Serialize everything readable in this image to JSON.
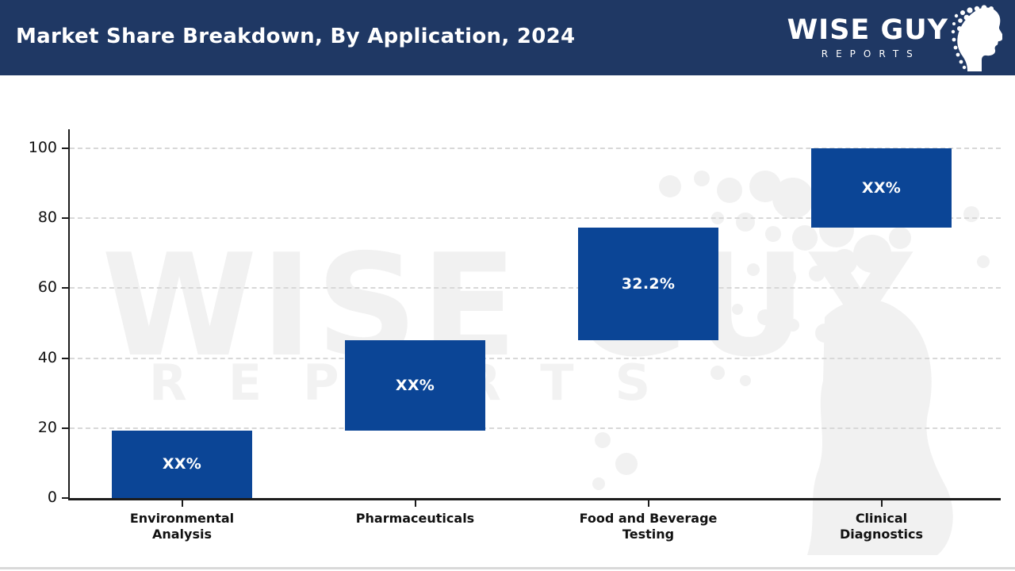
{
  "header": {
    "title": "Market Share Breakdown, By Application, 2024",
    "brand": {
      "name": "WISE GUY",
      "reports": "REPORTS"
    }
  },
  "watermark": {
    "line1": "WISE GUY",
    "line2": "REPORTS"
  },
  "chart_data": {
    "type": "bar",
    "variant": "waterfall",
    "title": "Market Share Breakdown, By Application, 2024",
    "xlabel": "",
    "ylabel": "",
    "ylim": [
      0,
      105.4
    ],
    "yticks": [
      0,
      20,
      40,
      60,
      80,
      100
    ],
    "grid": true,
    "legend": false,
    "bar_color": "#0b4596",
    "categories": [
      "Environmental Analysis",
      "Pharmaceuticals",
      "Food and Beverage Testing",
      "Clinical Diagnostics"
    ],
    "segments": [
      {
        "category": "Environmental Analysis",
        "lines": [
          "Environmental",
          "Analysis"
        ],
        "start": 0,
        "end": 19.3,
        "value": 19.3,
        "display_label": "XX%"
      },
      {
        "category": "Pharmaceuticals",
        "lines": [
          "Pharmaceuticals"
        ],
        "start": 19.3,
        "end": 45.0,
        "value": 25.7,
        "display_label": "XX%"
      },
      {
        "category": "Food and Beverage Testing",
        "lines": [
          "Food and Beverage",
          "Testing"
        ],
        "start": 45.0,
        "end": 77.2,
        "value": 32.2,
        "display_label": "32.2%"
      },
      {
        "category": "Clinical Diagnostics",
        "lines": [
          "Clinical",
          "Diagnostics"
        ],
        "start": 77.2,
        "end": 100,
        "value": 22.8,
        "display_label": "XX%"
      }
    ]
  }
}
